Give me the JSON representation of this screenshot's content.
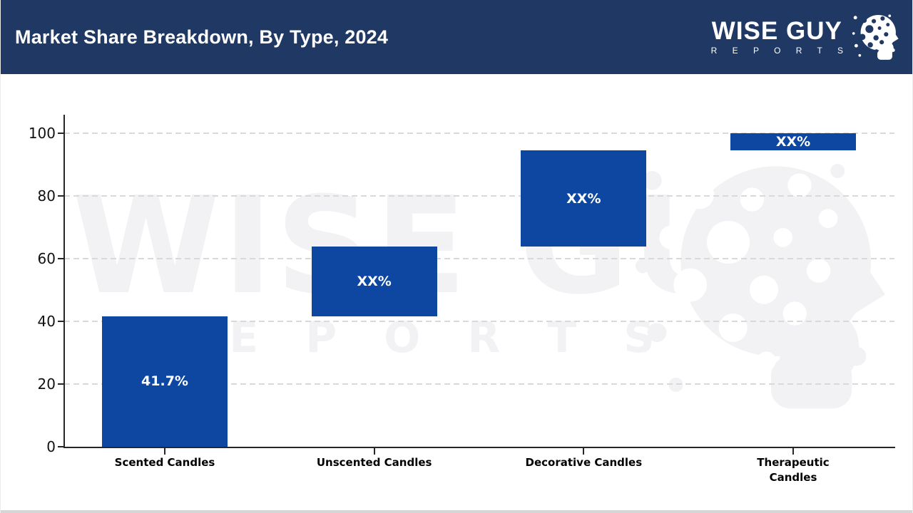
{
  "header": {
    "title": "Market Share Breakdown, By Type, 2024",
    "bg_color": "#1f3864",
    "logo": {
      "name": "WISE GUY",
      "sub": "R E P O R T S"
    }
  },
  "watermark": {
    "line1": "WISE GUY",
    "line2_letters": [
      "R",
      "E",
      "P",
      "O",
      "R",
      "T",
      "S"
    ],
    "color": "#f2f2f4"
  },
  "chart_data": {
    "type": "bar",
    "subtype": "waterfall",
    "title": "Market Share Breakdown, By Type, 2024",
    "categories": [
      "Scented Candles",
      "Unscented Candles",
      "Decorative Candles",
      "Therapeutic Candles"
    ],
    "x_label_lines": [
      [
        "Scented Candles"
      ],
      [
        "Unscented Candles"
      ],
      [
        "Decorative Candles"
      ],
      [
        "Therapeutic",
        "Candles"
      ]
    ],
    "bars": [
      {
        "category": "Scented Candles",
        "label": "41.7%",
        "start": 0,
        "end": 41.7
      },
      {
        "category": "Unscented Candles",
        "label": "XX%",
        "start": 41.7,
        "end": 63.9
      },
      {
        "category": "Decorative Candles",
        "label": "XX%",
        "start": 63.9,
        "end": 94.5
      },
      {
        "category": "Therapeutic Candles",
        "label": "XX%",
        "start": 94.5,
        "end": 100
      }
    ],
    "y_ticks": [
      0,
      20,
      40,
      60,
      80,
      100
    ],
    "ylim": [
      0,
      105.5
    ],
    "grid": true,
    "legend": "none",
    "xlabel": "",
    "ylabel": "",
    "colors": {
      "bar": "#0d47a1",
      "bar_label": "#ffffff",
      "grid": "#d9d9d9",
      "axis": "#262626",
      "tick_text": "#111111"
    }
  }
}
